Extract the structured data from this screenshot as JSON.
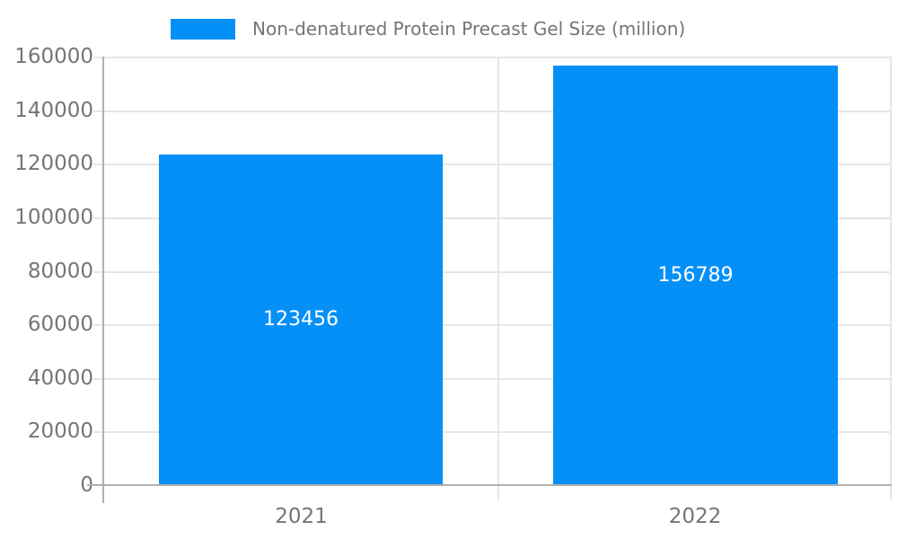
{
  "legend": {
    "label": "Non-denatured Protein Precast Gel Size (million)",
    "swatch_color": "#0590f8"
  },
  "colors": {
    "bar": "#0590f8",
    "gridline": "#e6e6e6",
    "axis": "#b0b0b0",
    "tick_text": "#757575",
    "bar_label_text": "#ffffff",
    "background": "#ffffff"
  },
  "chart_data": {
    "type": "bar",
    "title": "Non-denatured Protein Precast Gel Size (million)",
    "categories": [
      "2021",
      "2022"
    ],
    "values": [
      123456,
      156789
    ],
    "xlabel": "",
    "ylabel": "",
    "ylim": [
      0,
      160000
    ],
    "ytick_step": 20000,
    "yticks": [
      "0",
      "20000",
      "40000",
      "60000",
      "80000",
      "100000",
      "120000",
      "140000",
      "160000"
    ],
    "grid": true,
    "legend_position": "top",
    "bar_label_color": "#ffffff"
  }
}
